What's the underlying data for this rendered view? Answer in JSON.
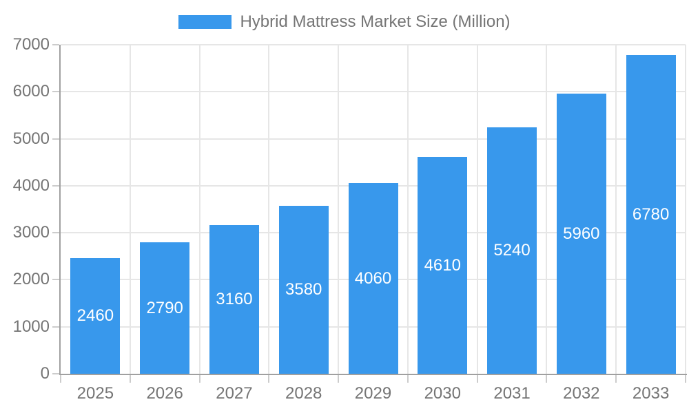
{
  "chart_data": {
    "type": "bar",
    "legend": "Hybrid Mattress Market Size (Million)",
    "categories": [
      "2025",
      "2026",
      "2027",
      "2028",
      "2029",
      "2030",
      "2031",
      "2032",
      "2033"
    ],
    "values": [
      2460,
      2790,
      3160,
      3580,
      4060,
      4610,
      5240,
      5960,
      6780
    ],
    "series": [
      {
        "name": "Hybrid Mattress Market Size (Million)",
        "values": [
          2460,
          2790,
          3160,
          3580,
          4060,
          4610,
          5240,
          5960,
          6780
        ]
      }
    ],
    "title": "",
    "xlabel": "",
    "ylabel": "",
    "ylim": [
      0,
      7000
    ],
    "yticks": [
      0,
      1000,
      2000,
      3000,
      4000,
      5000,
      6000,
      7000
    ],
    "grid": true,
    "legend_position": "top-center",
    "value_labels": "inside-center",
    "colors": {
      "bar": "#3898ec",
      "bar_label": "#ffffff",
      "axis_text": "#757575",
      "legend_text": "#757575",
      "grid_line": "#e6e6e6",
      "axis_line": "#a0a0a0",
      "tick": "#cccccc",
      "background": "#ffffff"
    }
  }
}
